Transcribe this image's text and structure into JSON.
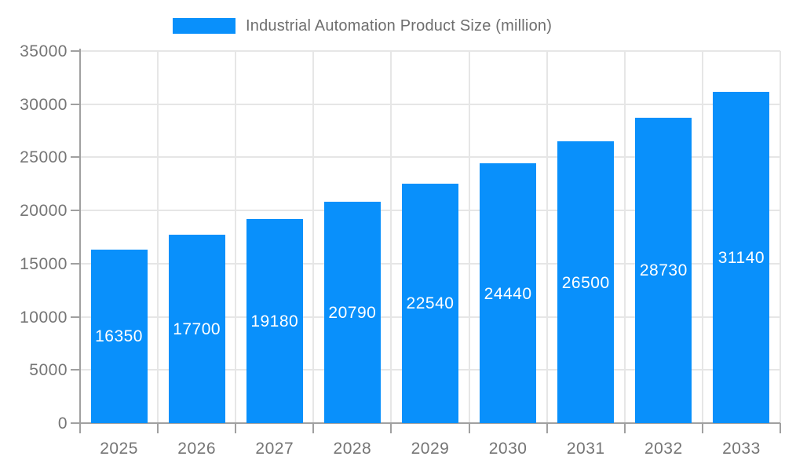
{
  "legend": {
    "label": "Industrial Automation Product Size (million)"
  },
  "chart_data": {
    "type": "bar",
    "title": "Industrial Automation Product Size (million)",
    "categories": [
      "2025",
      "2026",
      "2027",
      "2028",
      "2029",
      "2030",
      "2031",
      "2032",
      "2033"
    ],
    "values": [
      16350,
      17700,
      19180,
      20790,
      22540,
      24440,
      26500,
      28730,
      31140
    ],
    "value_labels": [
      "16350",
      "17700",
      "19180",
      "20790",
      "22540",
      "24440",
      "26500",
      "28730",
      "31140"
    ],
    "xlabel": "",
    "ylabel": "",
    "ylim": [
      0,
      35000
    ],
    "ytick_step": 5000,
    "ytick_labels": [
      "0",
      "5000",
      "10000",
      "15000",
      "20000",
      "25000",
      "30000",
      "35000"
    ],
    "grid": true,
    "legend_position": "top",
    "value_label_position": "inside-center",
    "colors": {
      "bar": "#0990FB",
      "value_label": "#ffffff",
      "grid": "#e6e6e6",
      "axis_line": "#a0a0a0",
      "tick_label": "#757575",
      "legend_text": "#6e6e6e"
    }
  }
}
